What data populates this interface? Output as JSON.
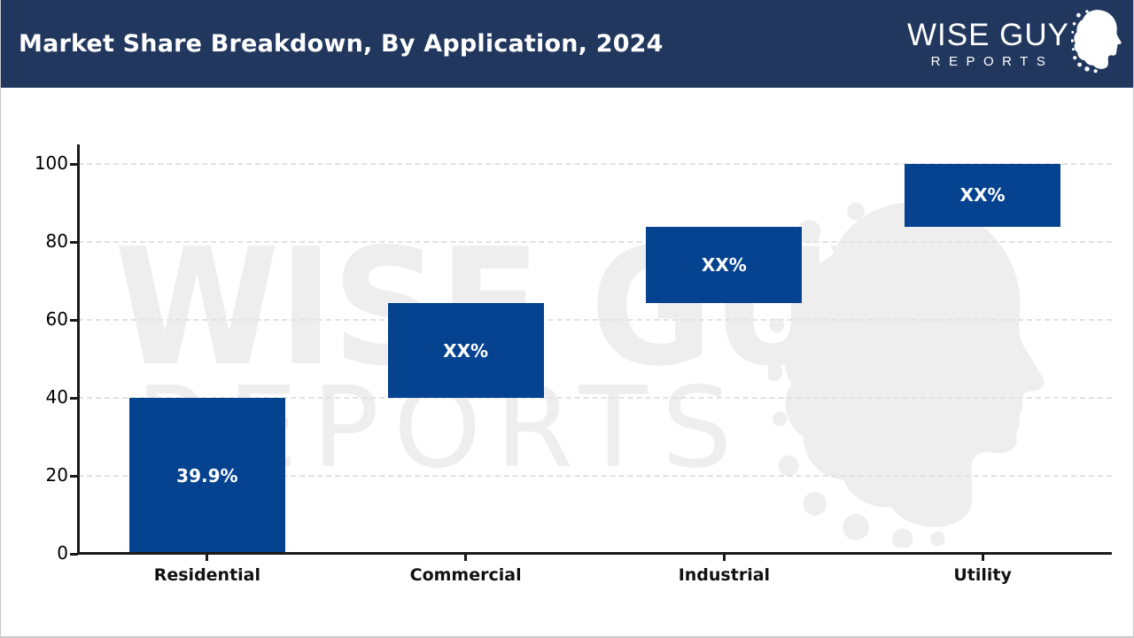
{
  "page": {
    "background": "#ffffff",
    "border_color": "#c9c9c9"
  },
  "header": {
    "title": "Market Share Breakdown, By Application, 2024",
    "background": "#21375E",
    "logo": {
      "line1": "WISE GUY",
      "line2": "REPORTS"
    }
  },
  "watermark": {
    "line1": "WISE GUY",
    "line2": "REPORTS"
  },
  "chart_data": {
    "type": "bar",
    "subtype": "waterfall",
    "title": "Market Share Breakdown, By Application, 2024",
    "categories": [
      "Residential",
      "Commercial",
      "Industrial",
      "Utility"
    ],
    "segments": [
      {
        "category": "Residential",
        "start": 0,
        "end": 39.9,
        "label": "39.9%"
      },
      {
        "category": "Commercial",
        "start": 39.9,
        "end": 64.3,
        "label": "XX%"
      },
      {
        "category": "Industrial",
        "start": 64.3,
        "end": 83.9,
        "label": "XX%"
      },
      {
        "category": "Utility",
        "start": 83.9,
        "end": 100,
        "label": "XX%"
      }
    ],
    "yticks": [
      0,
      20,
      40,
      60,
      80,
      100
    ],
    "ylim": [
      0,
      105
    ],
    "xlabel": "",
    "ylabel": "",
    "bar_color": "#05428F",
    "label_color": "#ffffff",
    "grid": "horizontal-dashed",
    "legend_position": "none"
  }
}
